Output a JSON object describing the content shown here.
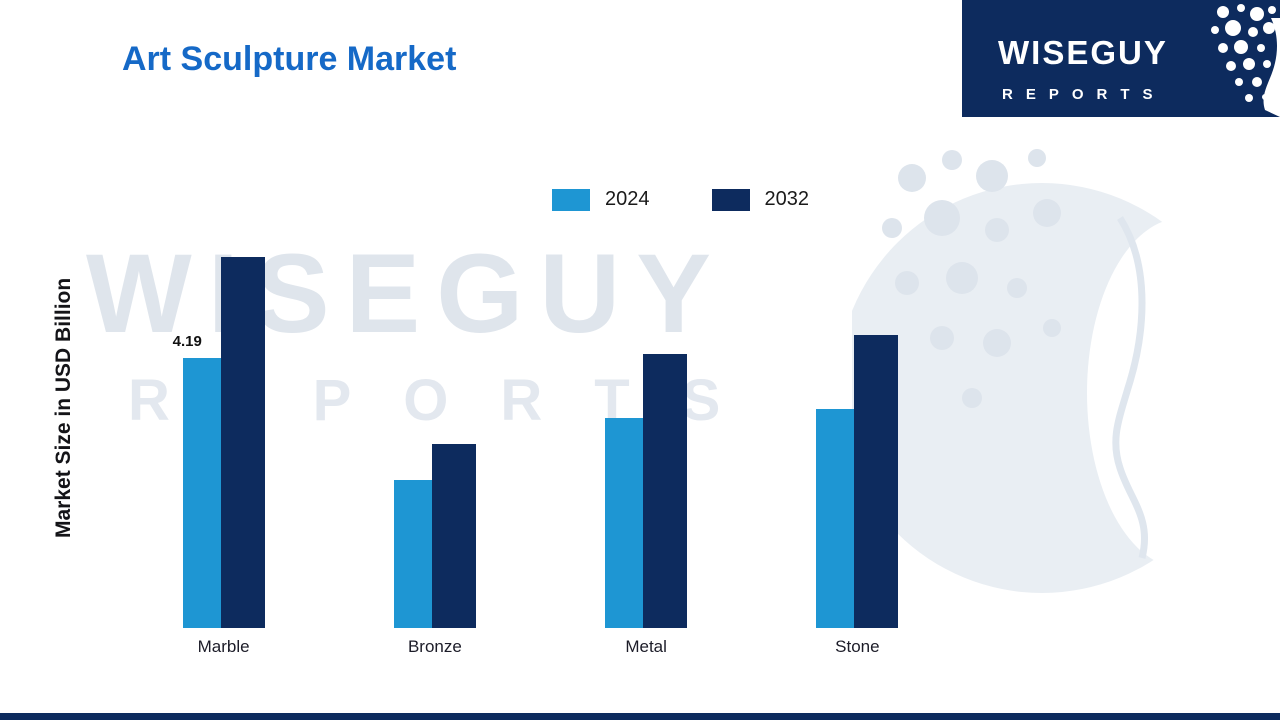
{
  "colors": {
    "title": "#1569c7",
    "navy": "#0d2b5e",
    "light_blue": "#1e96d3",
    "watermark_text": "#dfe5ec",
    "watermark_blob": "#e9eef3"
  },
  "header": {
    "title": "Art Sculpture Market",
    "brand": {
      "name": "WISEGUY",
      "sub": "REPORTS"
    }
  },
  "watermark": {
    "name": "WISEGUY",
    "sub": "REPORTS"
  },
  "chart_data": {
    "type": "bar",
    "title": "Art Sculpture Market",
    "xlabel": "",
    "ylabel": "Market Size in USD Billion",
    "categories": [
      "Marble",
      "Bronze",
      "Metal",
      "Stone"
    ],
    "series": [
      {
        "name": "2024",
        "color": "#1e96d3",
        "values": [
          4.19,
          2.3,
          3.25,
          3.4
        ]
      },
      {
        "name": "2032",
        "color": "#0d2b5e",
        "values": [
          5.75,
          2.85,
          4.25,
          4.55
        ]
      }
    ],
    "bar_label": {
      "category": "Marble",
      "series": "2024",
      "text": "4.19"
    },
    "ylim": [
      0,
      6
    ],
    "legend_position": "top",
    "grid": false
  }
}
